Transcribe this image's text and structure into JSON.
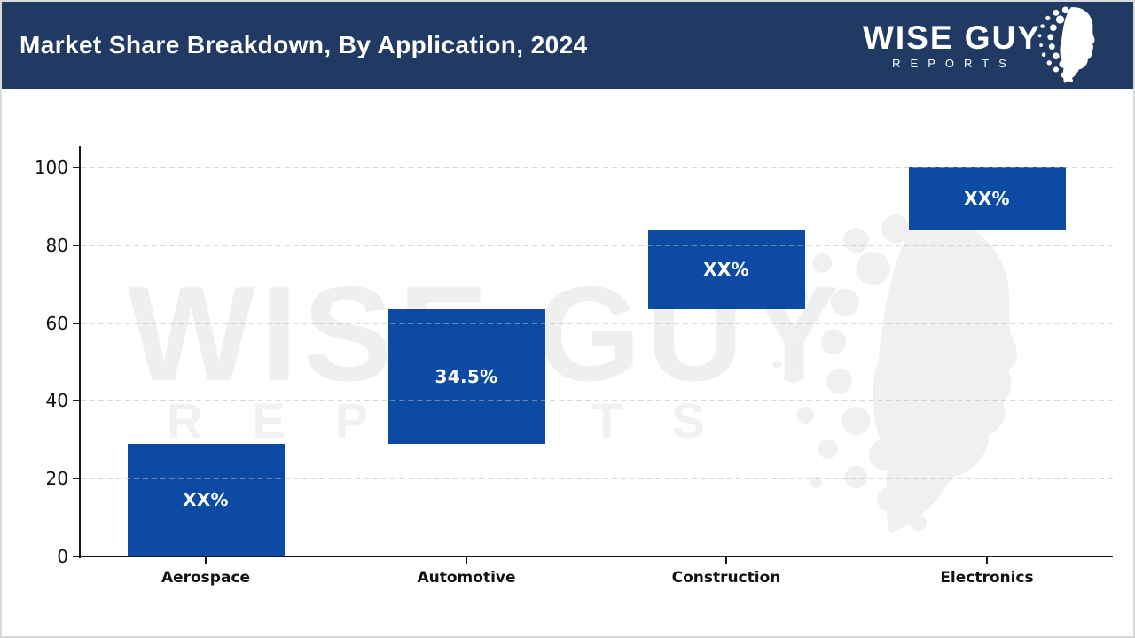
{
  "header": {
    "title": "Market Share Breakdown, By Application, 2024",
    "logo": {
      "line1": "WISE GUY",
      "line2": "REPORTS"
    }
  },
  "watermark": {
    "line1": "WISE GUY",
    "line2": "REPORTS"
  },
  "colors": {
    "header_bg": "#213a63",
    "bar_blue": "#0c4aa4",
    "watermark_gray": "#f0f0f0"
  },
  "chart_data": {
    "type": "bar",
    "subtype": "floating-waterfall",
    "title": "Market Share Breakdown, By Application, 2024",
    "categories": [
      "Aerospace",
      "Automotive",
      "Construction",
      "Electronics"
    ],
    "bars": [
      {
        "category": "Aerospace",
        "start": 0,
        "end": 29,
        "value": 29,
        "label": "XX%"
      },
      {
        "category": "Automotive",
        "start": 29,
        "end": 63.5,
        "value": 34.5,
        "label": "34.5%"
      },
      {
        "category": "Construction",
        "start": 63.5,
        "end": 84,
        "value": 20.5,
        "label": "XX%"
      },
      {
        "category": "Electronics",
        "start": 84,
        "end": 100,
        "value": 16,
        "label": "XX%"
      }
    ],
    "ylim": [
      0,
      100
    ],
    "yticks": [
      0,
      20,
      40,
      60,
      80,
      100
    ],
    "grid": "dashed-horizontal-over-bars",
    "legend": "none",
    "bar_color": "#0c4aa4"
  }
}
